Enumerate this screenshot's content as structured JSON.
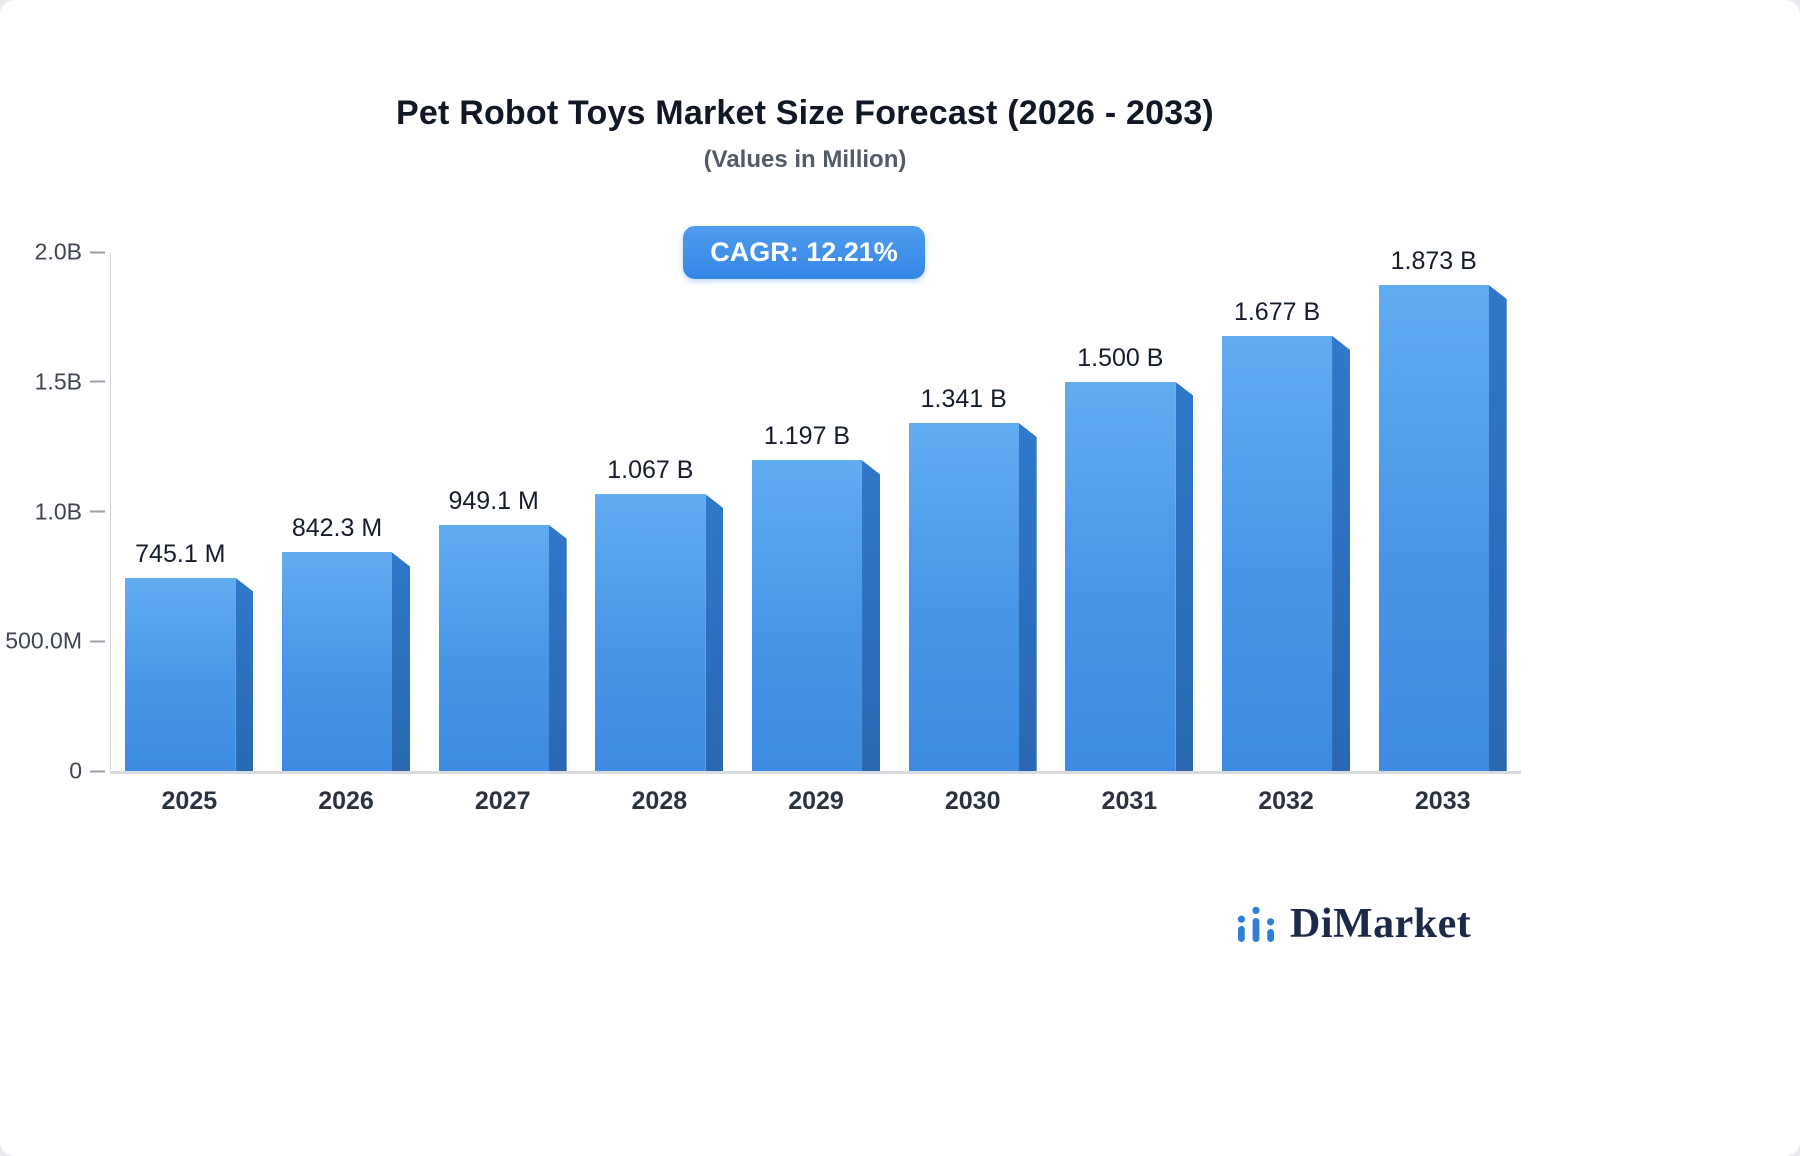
{
  "title": "Pet Robot Toys Market Size Forecast (2026 - 2033)",
  "subtitle": "(Values in Million)",
  "cagr_badge": "CAGR: 12.21%",
  "brand": {
    "name": "DiMarket",
    "icon": "bar-chart-logo-icon",
    "icon_color": "#2e7fd9",
    "text_color": "#1d2a47"
  },
  "colors": {
    "bar_face_top": "#61acf1",
    "bar_face_bottom": "#3d8ce2",
    "bar_side": "#2a68b2",
    "badge_bg": "#3587e6",
    "axis_text": "#3d4551"
  },
  "chart_data": {
    "type": "bar",
    "title": "Pet Robot Toys Market Size Forecast (2026 - 2033)",
    "subtitle": "(Values in Million)",
    "categories": [
      "2025",
      "2026",
      "2027",
      "2028",
      "2029",
      "2030",
      "2031",
      "2032",
      "2033"
    ],
    "values": [
      745.1,
      842.3,
      949.1,
      1067,
      1197,
      1341,
      1500,
      1677,
      1873
    ],
    "value_labels": [
      "745.1 M",
      "842.3 M",
      "949.1 M",
      "1.067 B",
      "1.197 B",
      "1.341 B",
      "1.500 B",
      "1.677 B",
      "1.873 B"
    ],
    "unit": "Million",
    "xlabel": "",
    "ylabel": "",
    "ylim": [
      0,
      2000
    ],
    "yticks": [
      {
        "value": 0,
        "label": "0"
      },
      {
        "value": 500,
        "label": "500.0M"
      },
      {
        "value": 1000,
        "label": "1.0B"
      },
      {
        "value": 1500,
        "label": "1.5B"
      },
      {
        "value": 2000,
        "label": "2.0B"
      }
    ],
    "grid": false,
    "legend": false,
    "annotations": [
      "CAGR: 12.21%"
    ]
  }
}
